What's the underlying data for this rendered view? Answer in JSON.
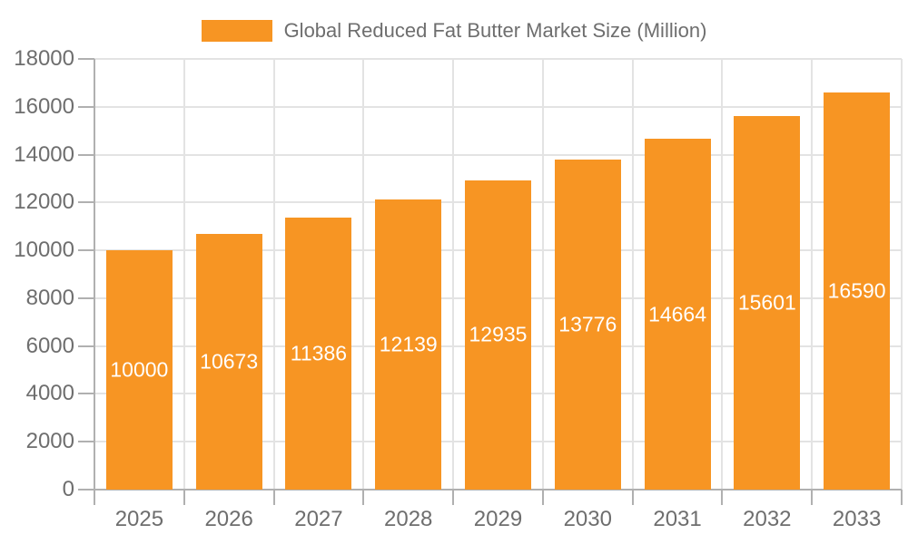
{
  "chart_data": {
    "type": "bar",
    "title": "Global Reduced Fat Butter Market Size (Million)",
    "legend_position": "top",
    "categories": [
      "2025",
      "2026",
      "2027",
      "2028",
      "2029",
      "2030",
      "2031",
      "2032",
      "2033"
    ],
    "series": [
      {
        "name": "Global Reduced Fat Butter Market Size (Million)",
        "values": [
          10000,
          10673,
          11386,
          12139,
          12935,
          13776,
          14664,
          15601,
          16590
        ]
      }
    ],
    "value_labels": [
      "10000",
      "10673",
      "11386",
      "12139",
      "12935",
      "13776",
      "14664",
      "15601",
      "16590"
    ],
    "xlabel": "",
    "ylabel": "",
    "ylim": [
      0,
      18000
    ],
    "ytick_step": 2000,
    "ytick_labels": [
      "0",
      "2000",
      "4000",
      "6000",
      "8000",
      "10000",
      "12000",
      "14000",
      "16000",
      "18000"
    ],
    "grid": true,
    "colors": {
      "bar": "#F79523",
      "bar_value_text": "#FFFFFF",
      "axis_text": "#6E6E6E",
      "gridline": "#E3E3E3",
      "axis_line": "#B0B0B0",
      "background": "#FFFFFF"
    }
  }
}
